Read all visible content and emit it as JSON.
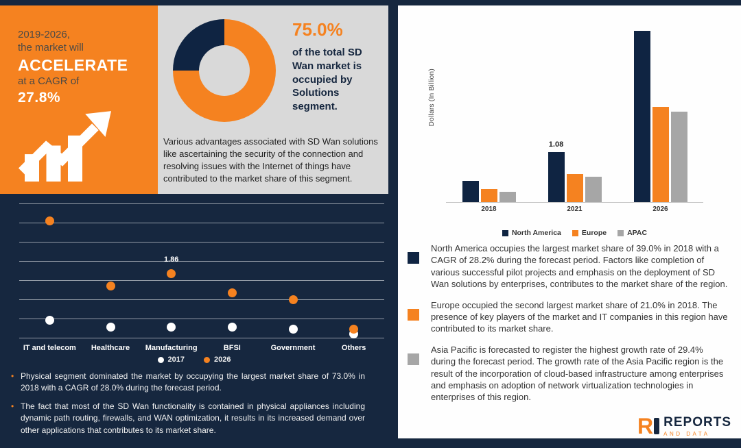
{
  "colors": {
    "accent_orange": "#F58220",
    "dark_navy": "#16273F",
    "chart_navy": "#0F2442",
    "panel_gray": "#D9D9D9",
    "series_gray": "#A6A6A6"
  },
  "accelerate_box": {
    "line1": "2019-2026,",
    "line2": "the market will",
    "line3": "ACCELERATE",
    "line4": "at a CAGR of",
    "line5": "27.8%"
  },
  "solutions": {
    "pct": "75.0%",
    "headline": "of the total SD Wan market is occupied by Solutions segment.",
    "description": "Various advantages associated with SD Wan solutions like ascertaining the security of the connection and resolving issues with the Internet of things have contributed to the market share of this segment."
  },
  "left_bullets": [
    "Physical segment dominated the market by occupying the largest market share of 73.0% in 2018 with a CAGR of 28.0% during the forecast period.",
    "The fact that most of the SD Wan functionality is contained in physical appliances including dynamic path routing, firewalls, and WAN optimization, it results in its increased demand over other applications that contributes to its market share."
  ],
  "region_notes": [
    {
      "region": "North America",
      "color": "#0F2442",
      "text": "North America occupies the largest market share of 39.0% in 2018 with a CAGR of 28.2% during the forecast period. Factors like completion of various successful pilot projects and emphasis on the deployment of SD Wan solutions by enterprises, contributes to the market share of the region."
    },
    {
      "region": "Europe",
      "color": "#F58220",
      "text": "Europe occupied the second largest market share of 21.0% in 2018. The presence of key players of the market and IT companies in this region have contributed to its market share."
    },
    {
      "region": "Asia Pacific",
      "color": "#A6A6A6",
      "text": "Asia Pacific is forecasted to register the highest growth rate of 29.4% during the forecast period. The growth rate of the Asia Pacific region is the result of the incorporation of cloud-based infrastructure among enterprises and emphasis on adoption of network virtualization technologies in enterprises of this region."
    }
  ],
  "logo": {
    "mark": "R",
    "name": "REPORTS",
    "sub": "AND DATA"
  },
  "chart_data": [
    {
      "type": "pie",
      "subtype": "donut",
      "title": "75.0% of the total SD Wan market is occupied by Solutions segment",
      "labels": [
        "Solutions segment",
        "Rest of SD Wan market"
      ],
      "values": [
        75.0,
        25.0
      ],
      "colors": [
        "#F58220",
        "#0F2442"
      ]
    },
    {
      "type": "scatter",
      "title": "SD Wan market by end-use segment",
      "categories": [
        "IT and telecom",
        "Healthcare",
        "Manufacturing",
        "BFSI",
        "Government",
        "Others"
      ],
      "series": [
        {
          "name": "2017",
          "color": "#FFFFFF",
          "values": [
            0.5,
            0.3,
            0.3,
            0.3,
            0.25,
            0.1
          ]
        },
        {
          "name": "2026",
          "color": "#F58220",
          "values": [
            3.4,
            1.5,
            1.86,
            1.3,
            1.1,
            0.25
          ]
        }
      ],
      "data_labels": [
        {
          "series": "2026",
          "category": "Manufacturing",
          "text": "1.86"
        }
      ],
      "ylim": [
        0,
        3.9
      ],
      "gridlines": 8,
      "grid": true,
      "legend_position": "bottom"
    },
    {
      "type": "bar",
      "title": "Regional market size",
      "categories": [
        "2018",
        "2021",
        "2026"
      ],
      "series": [
        {
          "name": "North America",
          "color": "#0F2442",
          "values": [
            0.46,
            1.08,
            3.7
          ]
        },
        {
          "name": "Europe",
          "color": "#F58220",
          "values": [
            0.28,
            0.6,
            2.05
          ]
        },
        {
          "name": "APAC",
          "color": "#A6A6A6",
          "values": [
            0.22,
            0.55,
            1.95
          ]
        }
      ],
      "data_labels": [
        {
          "series": "North America",
          "category": "2021",
          "text": "1.08"
        }
      ],
      "xlabel": "",
      "ylabel": "Dollars (In Billion)",
      "ylim": [
        0,
        3.8
      ],
      "grid": false,
      "legend_position": "bottom"
    }
  ]
}
